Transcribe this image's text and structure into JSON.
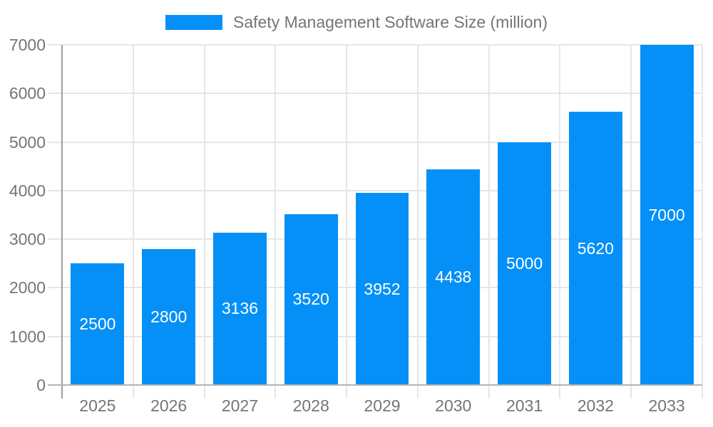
{
  "legend": {
    "label": "Safety Management Software Size (million)",
    "swatch_color": "#0590f8"
  },
  "colors": {
    "bar": "#0590f8",
    "grid": "#e6e6e6",
    "axis": "#9e9e9e",
    "baseline": "#b3b3b3",
    "text": "#757575",
    "bar_label": "#ffffff"
  },
  "chart_data": {
    "type": "bar",
    "title": "Safety Management Software Size (million)",
    "categories": [
      "2025",
      "2026",
      "2027",
      "2028",
      "2029",
      "2030",
      "2031",
      "2032",
      "2033"
    ],
    "values": [
      2500,
      2800,
      3136,
      3520,
      3952,
      4438,
      5000,
      5620,
      7000
    ],
    "xlabel": "",
    "ylabel": "",
    "ylim": [
      0,
      7000
    ],
    "ytick_step": 1000,
    "yticks": [
      0,
      1000,
      2000,
      3000,
      4000,
      5000,
      6000,
      7000
    ],
    "grid": true,
    "legend_position": "top-center",
    "bar_value_labels": true,
    "bar_label_position": "center"
  }
}
